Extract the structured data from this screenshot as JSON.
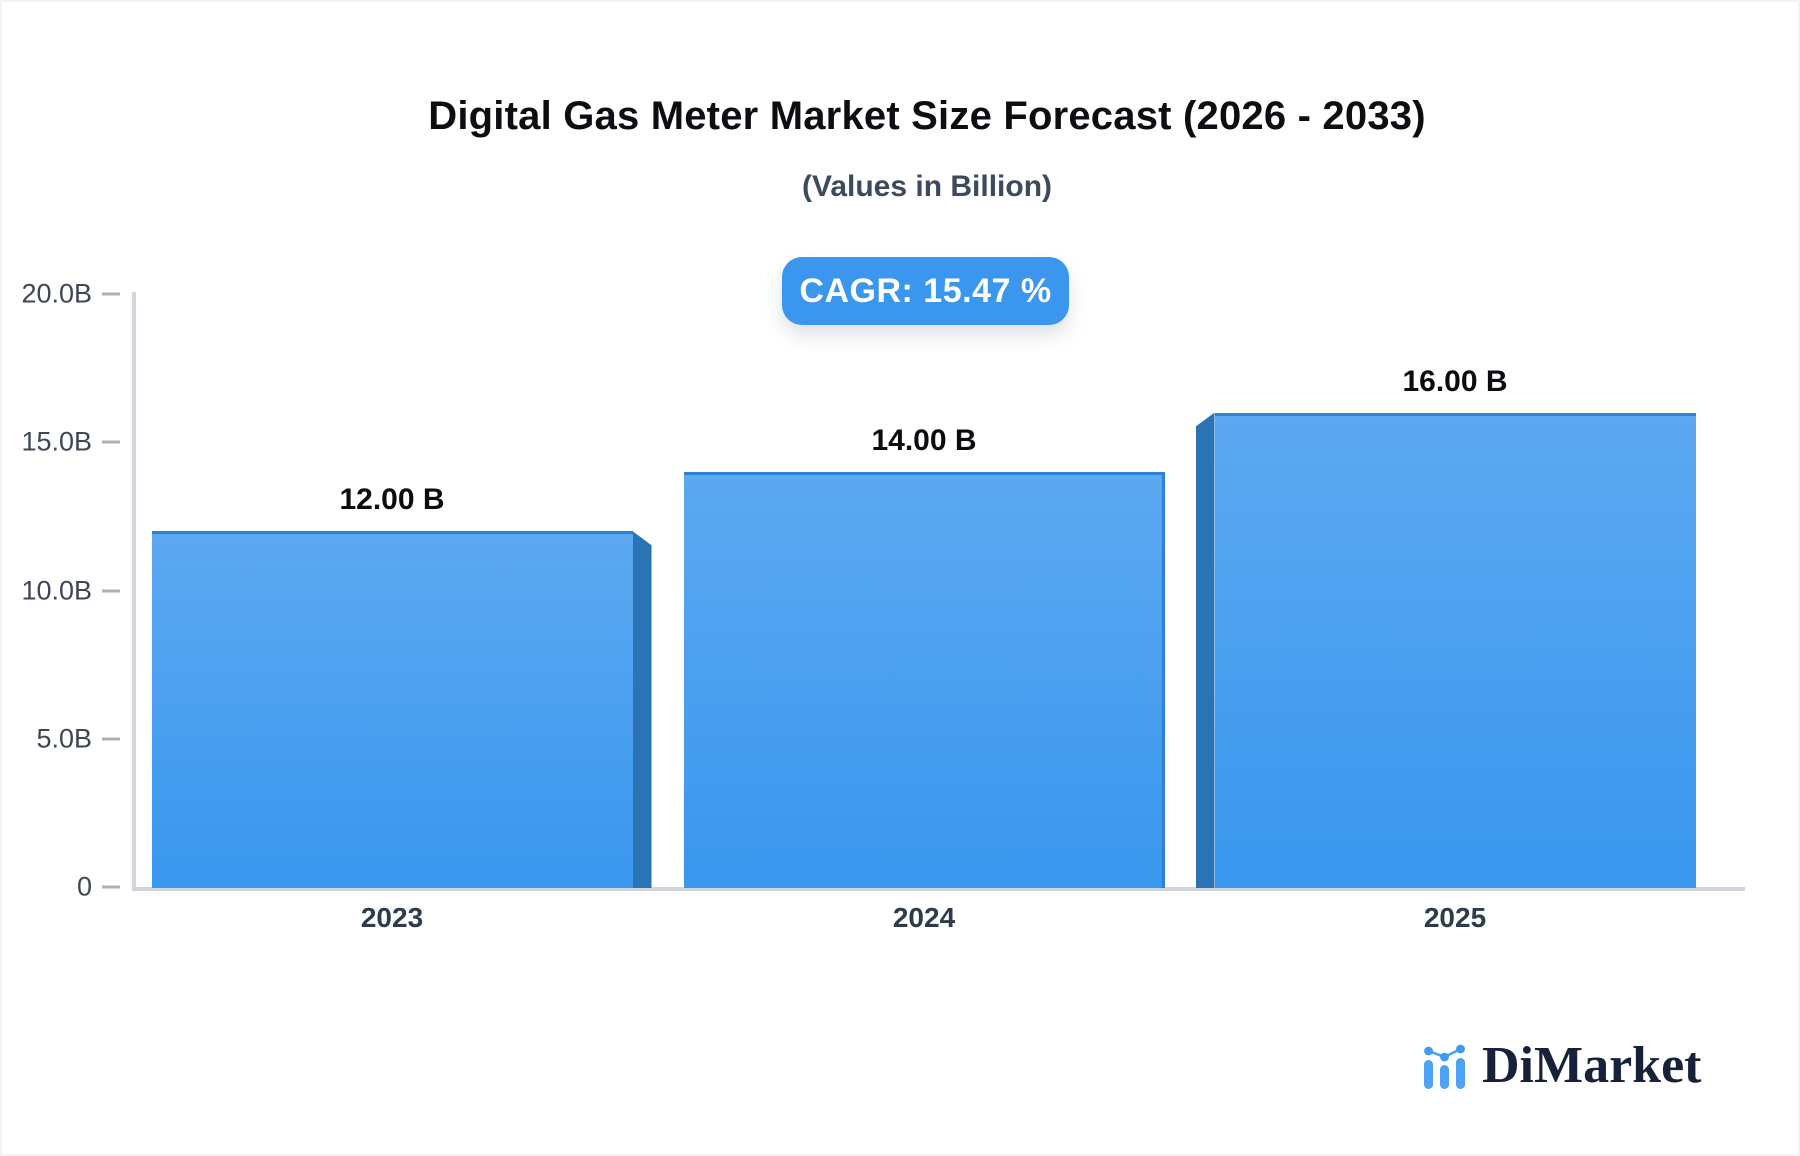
{
  "header": {
    "cagr_badge": "CAGR: 15.47 %"
  },
  "chart_data": {
    "type": "bar",
    "title": "Digital Gas Meter Market Size Forecast (2026 - 2033)",
    "subtitle": "(Values in Billion)",
    "categories": [
      "2023",
      "2024",
      "2025"
    ],
    "values": [
      12,
      14,
      16
    ],
    "data_labels": [
      "12.00 B",
      "14.00 B",
      "16.00 B"
    ],
    "unit": "Billion",
    "ylim": [
      0,
      20
    ],
    "yticks": {
      "values": [
        0,
        5,
        10,
        15,
        20
      ],
      "labels": [
        "0",
        "5.0B",
        "10.0B",
        "15.0B",
        "20.0B"
      ]
    },
    "grid": false,
    "legend": false,
    "cagr_percent": "15.47 %",
    "colors": {
      "bar_top": "#5CA8F1",
      "bar_bottom": "#3997EE",
      "bar_side": "#2B74B4",
      "badge": "#3B96EE",
      "axis": "#D4D8DE"
    }
  },
  "footer": {
    "brand": "DiMarket",
    "logo_icon": "mini-bar-chart-icon"
  }
}
